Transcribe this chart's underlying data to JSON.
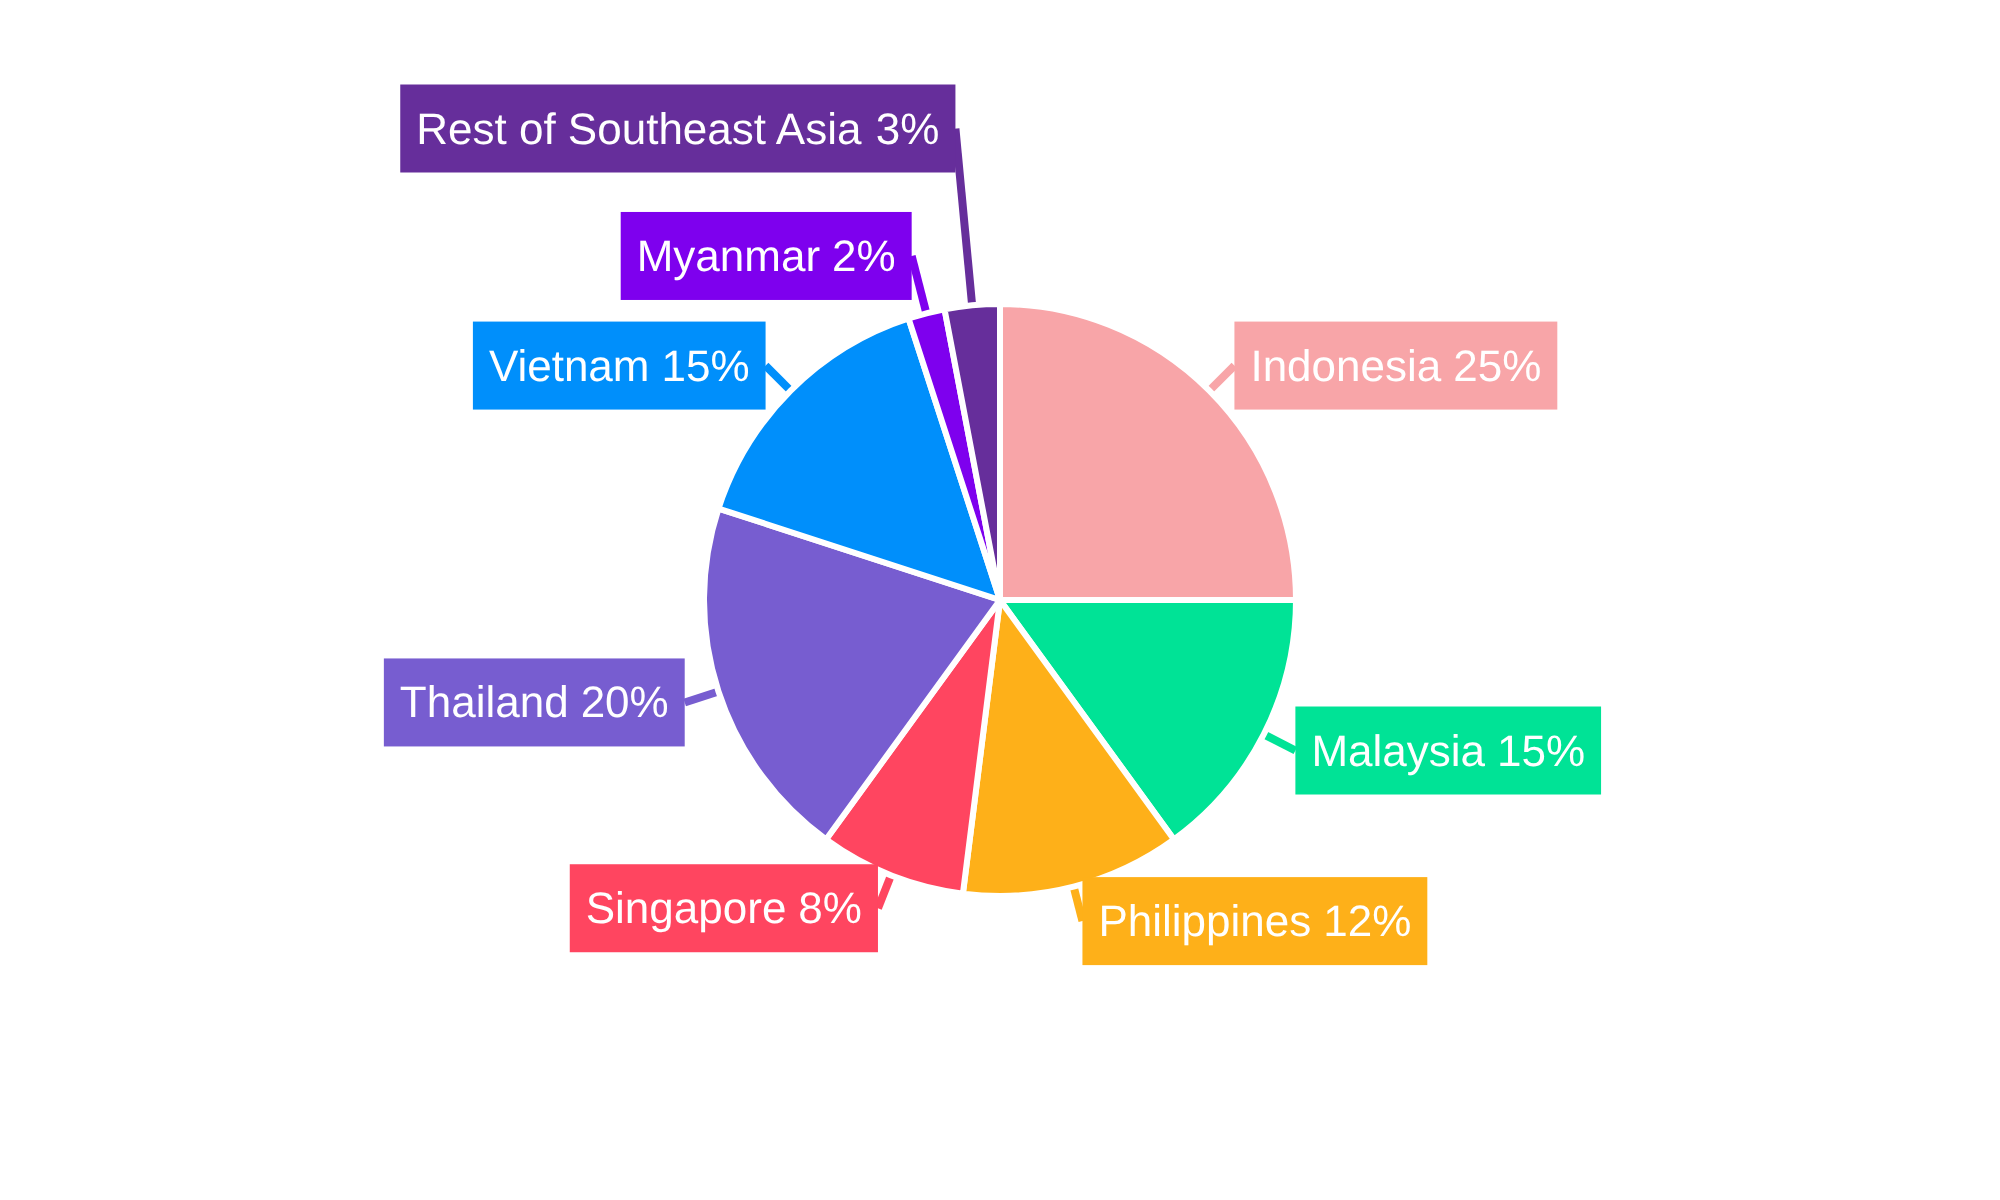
{
  "chart_data": {
    "type": "pie",
    "categories": [
      "Indonesia",
      "Malaysia",
      "Philippines",
      "Singapore",
      "Thailand",
      "Vietnam",
      "Myanmar",
      "Rest of Southeast Asia"
    ],
    "values": [
      25,
      15,
      12,
      8,
      20,
      15,
      2,
      3
    ],
    "colors": [
      "#f8a5a8",
      "#00e396",
      "#feb019",
      "#ff4560",
      "#775dd0",
      "#008ffb",
      "#7e00ee",
      "#662e9b"
    ],
    "value_labels": [
      "25%",
      "15%",
      "12%",
      "8%",
      "20%",
      "15%",
      "2%",
      "3%"
    ]
  }
}
